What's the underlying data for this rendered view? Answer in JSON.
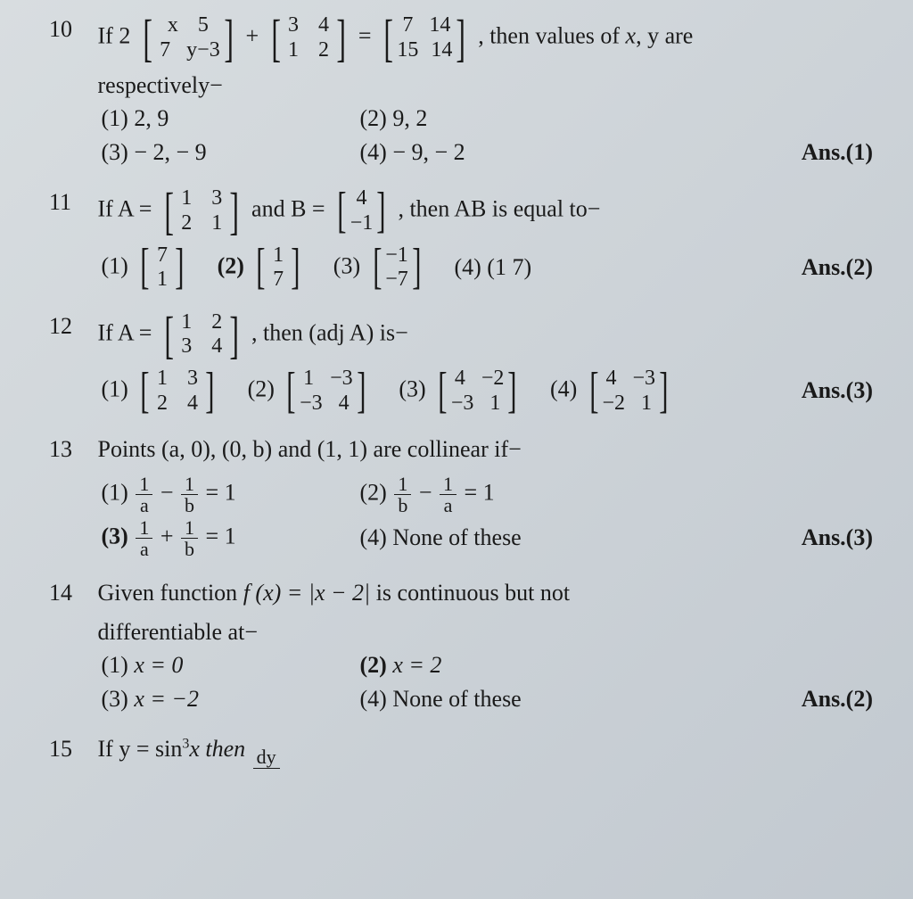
{
  "q10": {
    "num": "10",
    "stem_pre": "If 2",
    "m1": [
      [
        "x",
        "5"
      ],
      [
        "7",
        "y−3"
      ]
    ],
    "plus": " + ",
    "m2": [
      [
        "3",
        "4"
      ],
      [
        "1",
        "2"
      ]
    ],
    "eq": " = ",
    "m3": [
      [
        "7",
        "14"
      ],
      [
        "15",
        "14"
      ]
    ],
    "stem_post": ", then values of ",
    "xvar": "x",
    "stem_post2": ", y are",
    "stem_line2": "respectively−",
    "opt1_lbl": "(1) ",
    "opt1": "2, 9",
    "opt2_lbl": "(2) ",
    "opt2": "9, 2",
    "opt3_lbl": "(3) ",
    "opt3": "− 2, − 9",
    "opt4_lbl": "(4) ",
    "opt4": "− 9, − 2",
    "ans": "Ans.(1)"
  },
  "q11": {
    "num": "11",
    "stem_a": "If A = ",
    "mA": [
      [
        "1",
        "3"
      ],
      [
        "2",
        "1"
      ]
    ],
    "stem_b": " and B = ",
    "mB": [
      [
        "4"
      ],
      [
        "−1"
      ]
    ],
    "stem_c": ", then AB is equal to−",
    "opt1_lbl": "(1) ",
    "m1": [
      [
        "7"
      ],
      [
        "1"
      ]
    ],
    "opt2_lbl": "(2) ",
    "m2": [
      [
        "1"
      ],
      [
        "7"
      ]
    ],
    "opt3_lbl": "(3) ",
    "m3": [
      [
        "−1"
      ],
      [
        "−7"
      ]
    ],
    "opt4_lbl": "(4) ",
    "opt4": "(1  7)",
    "ans": "Ans.(2)"
  },
  "q12": {
    "num": "12",
    "stem_a": "If A = ",
    "mA": [
      [
        "1",
        "2"
      ],
      [
        "3",
        "4"
      ]
    ],
    "stem_b": ", then (adj A) is−",
    "opt1_lbl": "(1) ",
    "m1": [
      [
        "1",
        "3"
      ],
      [
        "2",
        "4"
      ]
    ],
    "opt2_lbl": "(2) ",
    "m2": [
      [
        "1",
        "−3"
      ],
      [
        "−3",
        "4"
      ]
    ],
    "opt3_lbl": "(3) ",
    "m3": [
      [
        "4",
        "−2"
      ],
      [
        "−3",
        "1"
      ]
    ],
    "opt4_lbl": "(4) ",
    "m4": [
      [
        "4",
        "−3"
      ],
      [
        "−2",
        "1"
      ]
    ],
    "ans": "Ans.(3)"
  },
  "q13": {
    "num": "13",
    "stem": "Points (a, 0), (0, b) and (1, 1) are collinear if−",
    "opt1_lbl": "(1) ",
    "f1a_n": "1",
    "f1a_d": "a",
    "sep1": " − ",
    "f1b_n": "1",
    "f1b_d": "b",
    "eq1": " = 1",
    "opt2_lbl": "(2) ",
    "f2a_n": "1",
    "f2a_d": "b",
    "sep2": " − ",
    "f2b_n": "1",
    "f2b_d": "a",
    "eq2": " = 1",
    "opt3_lbl": "(3) ",
    "f3a_n": "1",
    "f3a_d": "a",
    "sep3": " + ",
    "f3b_n": "1",
    "f3b_d": "b",
    "eq3": " = 1",
    "opt4_lbl": "(4) ",
    "opt4": "None of these",
    "ans": "Ans.(3)"
  },
  "q14": {
    "num": "14",
    "stem_a": "Given function ",
    "fx": "f (x) = |x − 2|",
    "stem_b": " is continuous but not",
    "stem_line2": "differentiable at−",
    "opt1_lbl": "(1) ",
    "opt1": "x = 0",
    "opt2_lbl": "(2) ",
    "opt2": "x = 2",
    "opt3_lbl": "(3) ",
    "opt3": "x = −2",
    "opt4_lbl": "(4) ",
    "opt4": "None of these",
    "ans": "Ans.(2)"
  },
  "q15": {
    "num": "15",
    "stem_a": "If y = sin",
    "sup": "3",
    "stem_b": "x then ",
    "frac_n": "dy"
  }
}
